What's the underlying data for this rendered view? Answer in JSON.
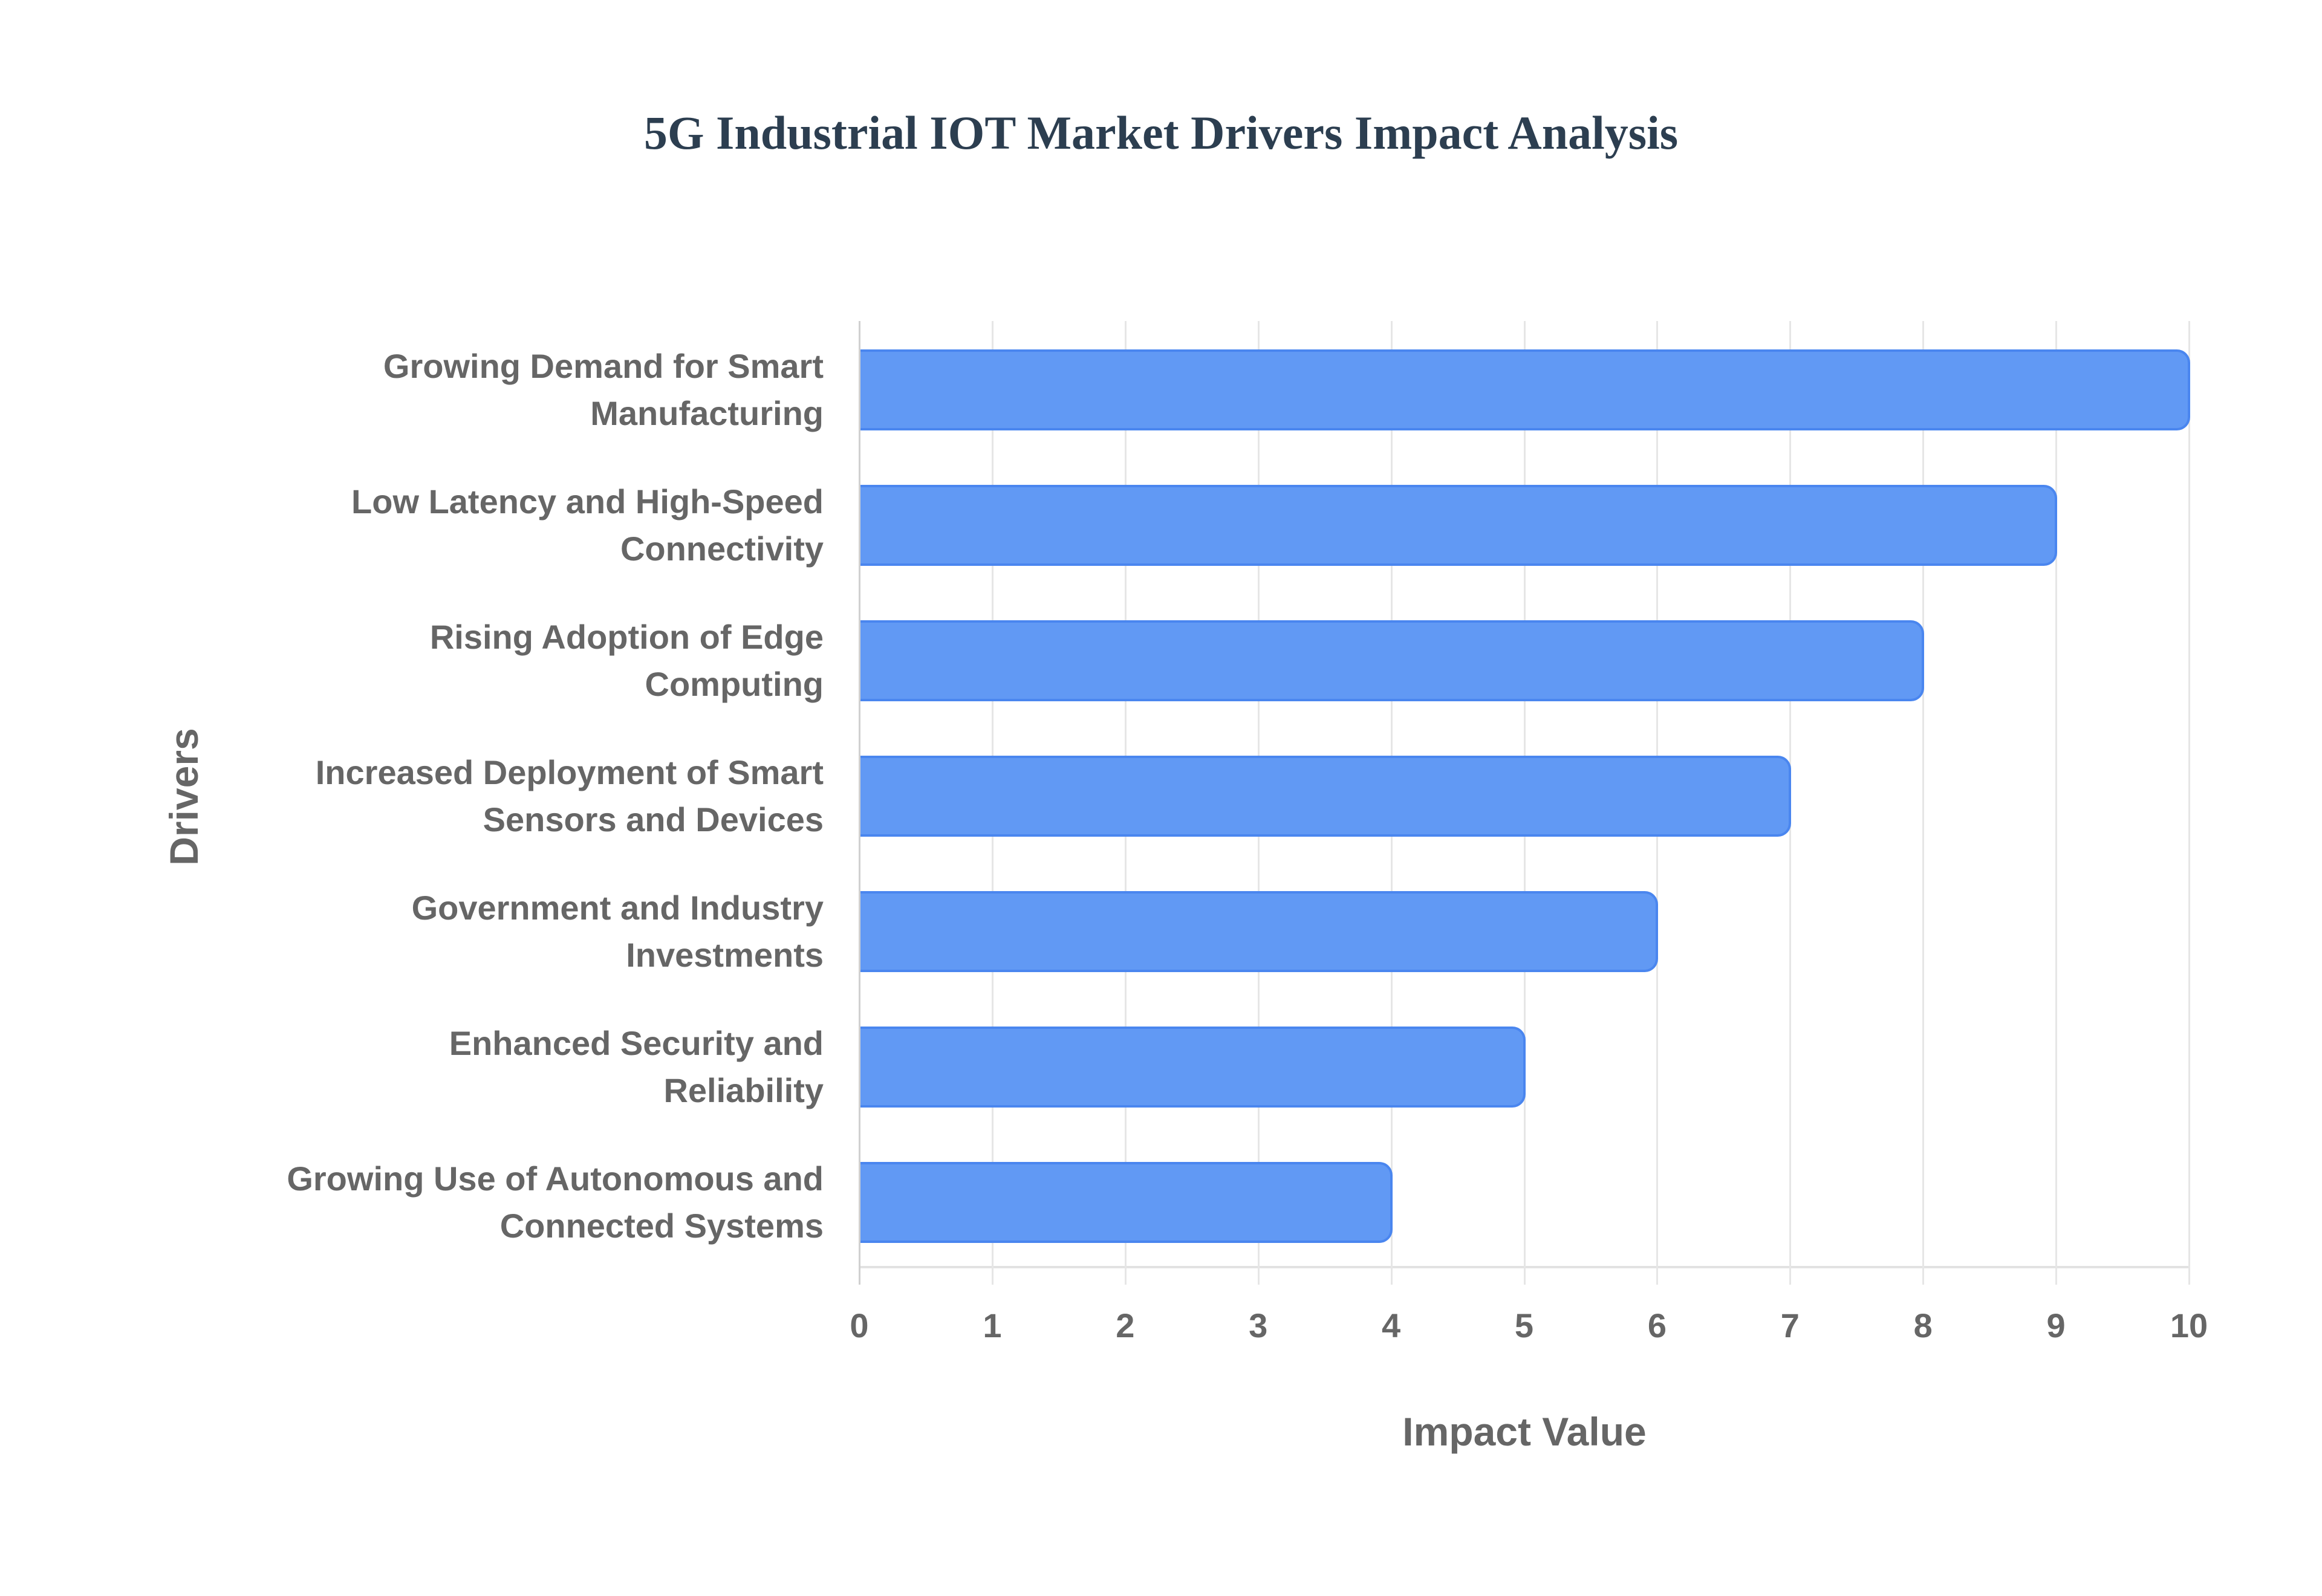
{
  "chart_data": {
    "type": "bar",
    "orientation": "horizontal",
    "title": "5G Industrial IOT Market Drivers Impact Analysis",
    "xlabel": "Impact Value",
    "ylabel": "Drivers",
    "xlim": [
      0,
      10
    ],
    "x_ticks": [
      "0",
      "1",
      "2",
      "3",
      "4",
      "5",
      "6",
      "7",
      "8",
      "9",
      "10"
    ],
    "grid": true,
    "legend": null,
    "categories": [
      "Growing Demand for Smart Manufacturing",
      "Low Latency and High-Speed Connectivity",
      "Rising Adoption of Edge Computing",
      "Increased Deployment of Smart Sensors and Devices",
      "Government and Industry Investments",
      "Enhanced Security and Reliability",
      "Growing Use of Autonomous and Connected Systems"
    ],
    "category_lines": [
      [
        "Growing Demand for Smart",
        "Manufacturing"
      ],
      [
        "Low Latency and High-Speed",
        "Connectivity"
      ],
      [
        "Rising Adoption of Edge",
        "Computing"
      ],
      [
        "Increased Deployment of Smart",
        "Sensors and Devices"
      ],
      [
        "Government and Industry",
        "Investments"
      ],
      [
        "Enhanced Security and",
        "Reliability"
      ],
      [
        "Growing Use of Autonomous and",
        "Connected Systems"
      ]
    ],
    "values": [
      10,
      9,
      8,
      7,
      6,
      5,
      4
    ],
    "colors": {
      "bar_fill": "#6199f4",
      "bar_border": "#4a86ef",
      "text": "#666666",
      "title": "#2c3e50",
      "grid": "#e6e6e6"
    }
  }
}
